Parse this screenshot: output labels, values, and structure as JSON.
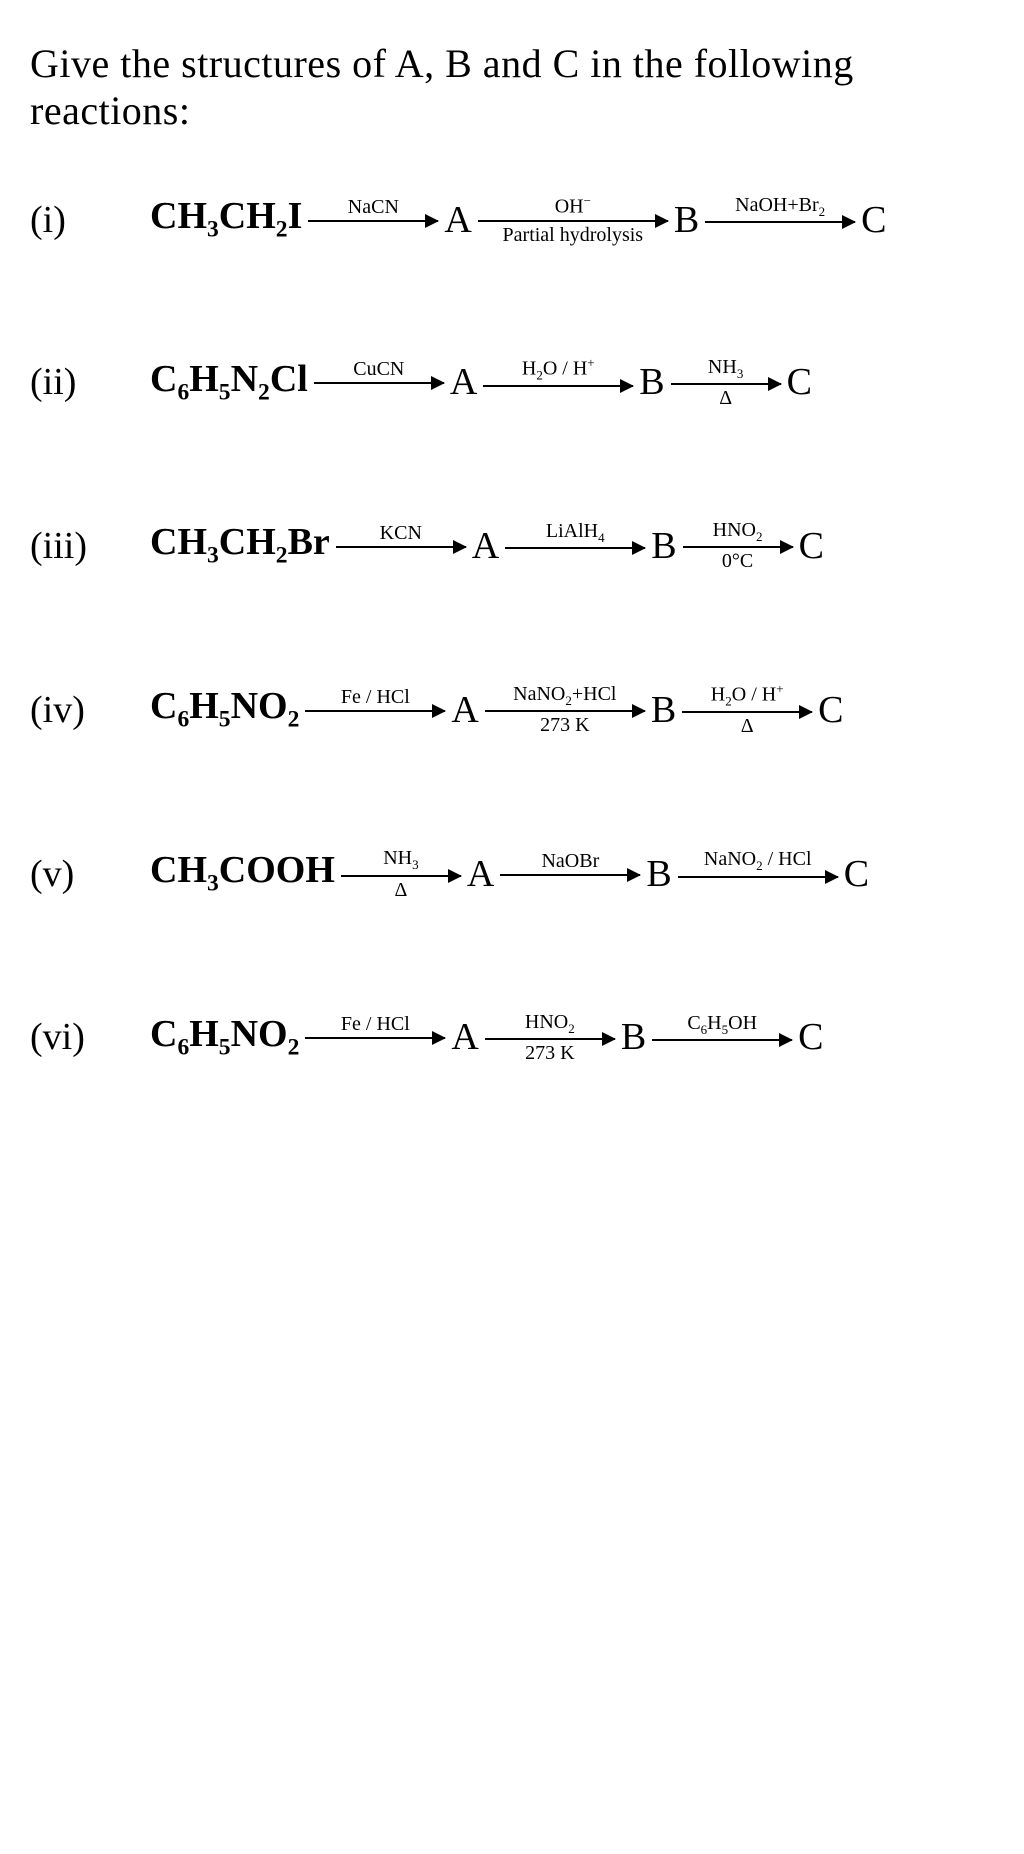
{
  "title": "Give the structures of A, B and C in the following reactions:",
  "labels": {
    "i": "(i)",
    "ii": "(ii)",
    "iii": "(iii)",
    "iv": "(iv)",
    "v": "(v)",
    "vi": "(vi)"
  },
  "prod": {
    "A": "A",
    "B": "B",
    "C": "C"
  },
  "r1": {
    "start_html": "CH<sub>3</sub>CH<sub>2</sub>I",
    "a1_top": "NaCN",
    "a2_top": "OH<sup>−</sup>",
    "a2_bot": "Partial hydrolysis",
    "a3_top": "NaOH+Br<sub>2</sub>"
  },
  "r2": {
    "start_html": "C<sub>6</sub>H<sub>5</sub>N<sub>2</sub>Cl",
    "a1_top": "CuCN",
    "a2_top": "H<sub>2</sub>O / H<sup>+</sup>",
    "a3_top": "NH<sub>3</sub>",
    "a3_bot": "Δ"
  },
  "r3": {
    "start_html": "CH<sub>3</sub>CH<sub>2</sub>Br",
    "a1_top": "KCN",
    "a2_top": "LiAlH<sub>4</sub>",
    "a3_top": "HNO<sub>2</sub>",
    "a3_bot": "0°C"
  },
  "r4": {
    "start_html": "C<sub>6</sub>H<sub>5</sub>NO<sub>2</sub>",
    "a1_top": "Fe / HCl",
    "a2_top": "NaNO<sub>2</sub>+HCl",
    "a2_bot": "273 K",
    "a3_top": "H<sub>2</sub>O / H<sup>+</sup>",
    "a3_bot": "Δ"
  },
  "r5": {
    "start_html": "CH<sub>3</sub>COOH",
    "a1_top": "NH<sub>3</sub>",
    "a1_bot": "Δ",
    "a2_top": "NaOBr",
    "a3_top": "NaNO<sub>2</sub> / HCl"
  },
  "r6": {
    "start_html": "C<sub>6</sub>H<sub>5</sub>NO<sub>2</sub>",
    "a1_top": "Fe / HCl",
    "a2_top": "HNO<sub>2</sub>",
    "a2_bot": "273 K",
    "a3_top": "C<sub>6</sub>H<sub>5</sub>OH"
  },
  "widths": {
    "r1": {
      "a1": 130,
      "a2": 190,
      "a3": 150
    },
    "r2": {
      "a1": 130,
      "a2": 150,
      "a3": 110
    },
    "r3": {
      "a1": 130,
      "a2": 140,
      "a3": 110
    },
    "r4": {
      "a1": 140,
      "a2": 160,
      "a3": 130
    },
    "r5": {
      "a1": 120,
      "a2": 140,
      "a3": 160
    },
    "r6": {
      "a1": 140,
      "a2": 130,
      "a3": 140
    }
  },
  "style": {
    "text_color": "#000000",
    "bg_color": "#ffffff",
    "title_fontsize": 40,
    "row_fontsize": 38,
    "reagent_fontsize": 20,
    "arrow_thickness": 2
  }
}
